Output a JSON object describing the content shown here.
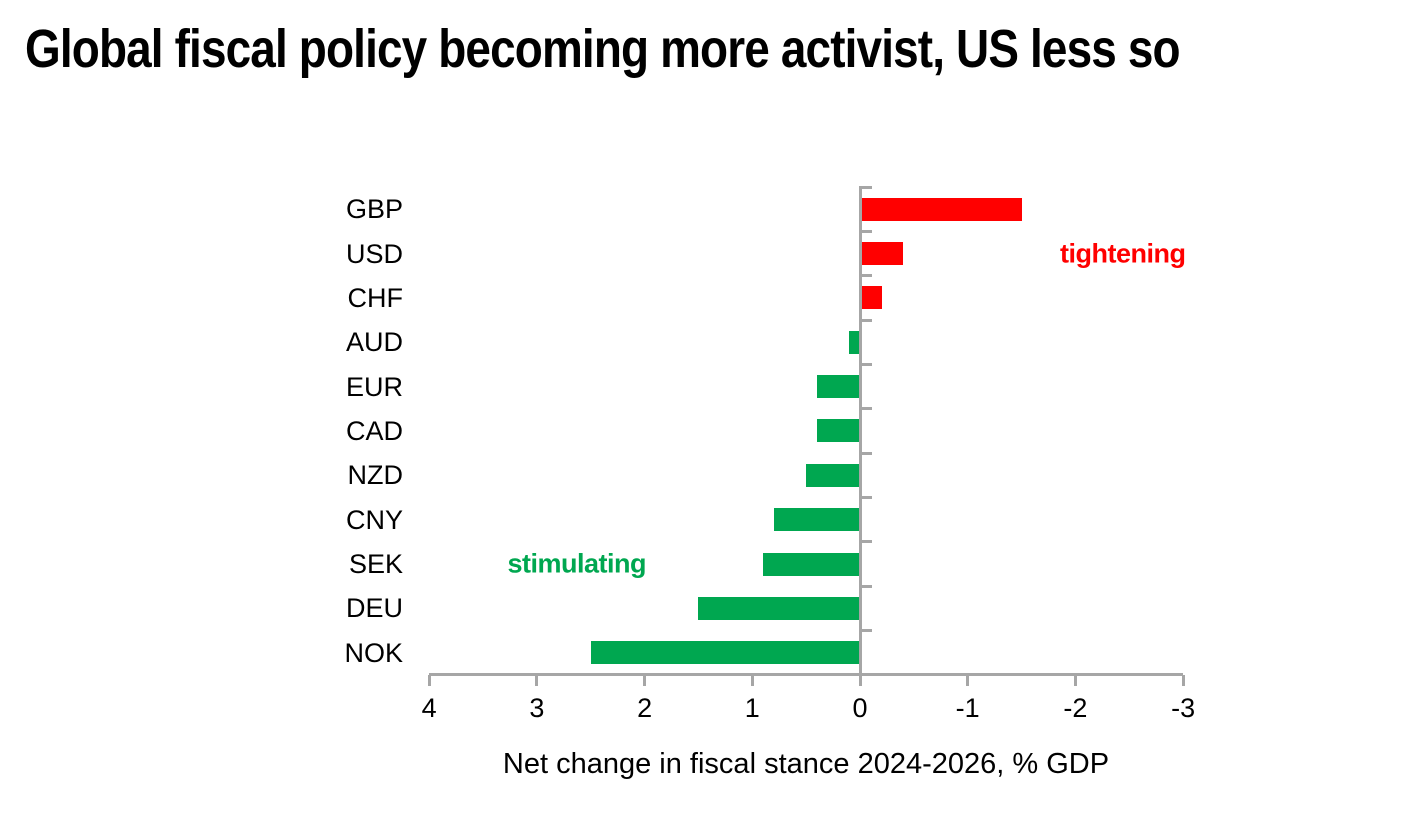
{
  "title": "Global fiscal policy becoming more activist, US less so",
  "colors": {
    "positive_green": "#00A750",
    "negative_red": "#FF0000",
    "axis_gray": "#A6A6A6",
    "text_black": "#000000"
  },
  "chart_data": {
    "type": "bar",
    "orientation": "horizontal",
    "title": "Global fiscal policy becoming more activist, US less so",
    "categories": [
      "GBP",
      "USD",
      "CHF",
      "AUD",
      "EUR",
      "CAD",
      "NZD",
      "CNY",
      "SEK",
      "DEU",
      "NOK"
    ],
    "values": [
      -1.5,
      -0.4,
      -0.2,
      0.1,
      0.4,
      0.4,
      0.5,
      0.8,
      0.9,
      1.5,
      2.5
    ],
    "xlabel": "Net change in fiscal stance 2024-2026, % GDP",
    "x_ticks": [
      "4",
      "3",
      "2",
      "1",
      "0",
      "-1",
      "-2",
      "-3"
    ],
    "x_tick_values": [
      4,
      3,
      2,
      1,
      0,
      -1,
      -2,
      -3
    ],
    "xlim": [
      4,
      -3
    ],
    "x_axis_reversed": true,
    "grid": false,
    "legend": "none",
    "bar_color_positive": "#00A750",
    "bar_color_negative": "#FF0000",
    "annotations": [
      {
        "text": "tightening",
        "color": "#FF0000",
        "anchor_category": "USD",
        "value_x": -2.44
      },
      {
        "text": "stimulating",
        "color": "#00A750",
        "anchor_category": "SEK",
        "value_x": 2.63
      }
    ]
  }
}
